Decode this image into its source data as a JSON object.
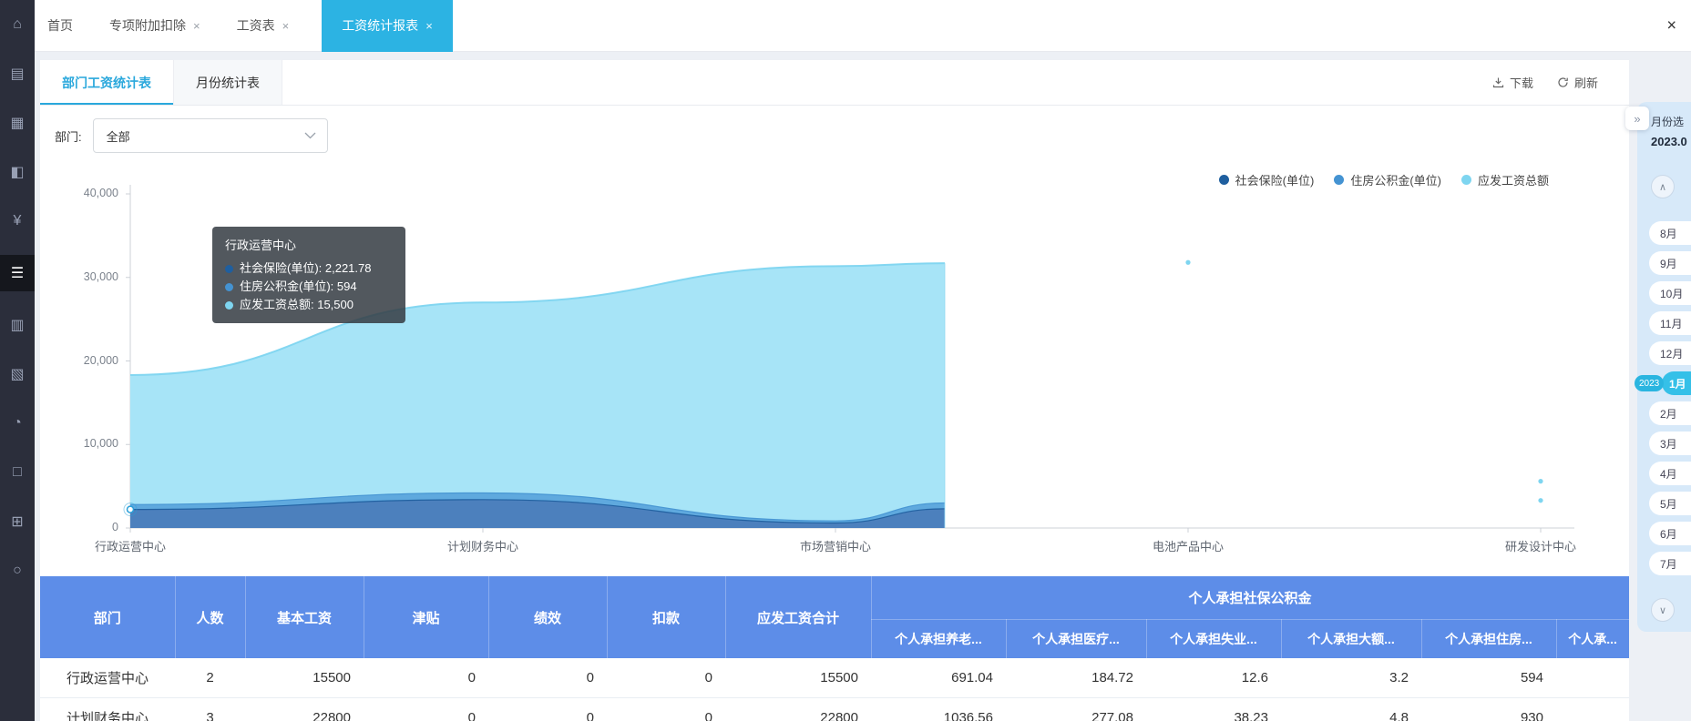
{
  "sidebar": {
    "items": [
      {
        "name": "home",
        "glyph": "⌂"
      },
      {
        "name": "vouchers",
        "glyph": "▤"
      },
      {
        "name": "ledger",
        "glyph": "▦"
      },
      {
        "name": "reports",
        "glyph": "◧"
      },
      {
        "name": "cashier",
        "glyph": "¥"
      },
      {
        "name": "salary",
        "glyph": "☰",
        "active": true
      },
      {
        "name": "assets",
        "glyph": "▥"
      },
      {
        "name": "inventory",
        "glyph": "▧"
      },
      {
        "name": "tax",
        "glyph": "◔"
      },
      {
        "name": "checkout",
        "glyph": "□"
      },
      {
        "name": "settings",
        "glyph": "⊞"
      },
      {
        "name": "user",
        "glyph": "○"
      }
    ]
  },
  "tabbar": {
    "close_icon": "×",
    "close_all_icon": "×",
    "tabs": [
      {
        "label": "首页",
        "closable": false,
        "active": false
      },
      {
        "label": "专项附加扣除",
        "closable": true,
        "active": false
      },
      {
        "label": "工资表",
        "closable": true,
        "active": false
      },
      {
        "label": "工资统计报表",
        "closable": true,
        "active": true
      }
    ]
  },
  "subtabs": {
    "tabs": [
      {
        "label": "部门工资统计表",
        "active": true
      },
      {
        "label": "月份统计表",
        "active": false
      }
    ]
  },
  "toolbar": {
    "download": "下载",
    "refresh": "刷新"
  },
  "filter": {
    "label": "部门:",
    "value": "全部"
  },
  "chart_data": {
    "type": "area",
    "stacked": true,
    "smooth": true,
    "title": "",
    "categories": [
      "行政运营中心",
      "计划财务中心",
      "市场营销中心",
      "电池产品中心",
      "研发设计中心"
    ],
    "series": [
      {
        "name": "社会保险(单位)",
        "color": "#1f5f9f",
        "fill": "#4c80bd",
        "values": [
          2221.78,
          3400,
          600,
          null,
          null
        ]
      },
      {
        "name": "住房公积金(单位)",
        "color": "#4493d2",
        "fill": "#5fa9de",
        "values": [
          594,
          800,
          250,
          null,
          null
        ]
      },
      {
        "name": "应发工资总额",
        "color": "#7ed5f0",
        "fill": "#a7e4f7",
        "values": [
          15500,
          22800,
          30500,
          null,
          null
        ]
      }
    ],
    "ylim": [
      0,
      40000
    ],
    "yticks": [
      "0",
      "10,000",
      "20,000",
      "30,000",
      "40,000"
    ],
    "legend_position": "top-right",
    "fill_cutoff_after_category": 2,
    "fill_cutoff_fraction": 0.31,
    "cutoff_values": [
      2300,
      700,
      28700
    ],
    "scatter_points": [
      {
        "category_index": 3,
        "value": 31800
      },
      {
        "category_index": 4,
        "value": 5600
      },
      {
        "category_index": 4,
        "value": 3300
      }
    ]
  },
  "tooltip": {
    "title": "行政运营中心",
    "items": [
      {
        "name": "社会保险(单位)",
        "value": "2,221.78",
        "color": "#1f5f9f"
      },
      {
        "name": "住房公积金(单位)",
        "value": "594",
        "color": "#4493d2"
      },
      {
        "name": "应发工资总额",
        "value": "15,500",
        "color": "#7ed5f0"
      }
    ]
  },
  "month_panel": {
    "collapse_icon": "»",
    "scroll_up_icon": "∧",
    "scroll_down_icon": "∨",
    "title": "月份选",
    "year": "2023.0",
    "months": [
      "8月",
      "9月",
      "10月",
      "11月",
      "12月",
      "1月",
      "2月",
      "3月",
      "4月",
      "5月",
      "6月",
      "7月"
    ],
    "active_month": "1月",
    "active_badge": "2023"
  },
  "table": {
    "main_headers": [
      "部门",
      "人数",
      "基本工资",
      "津贴",
      "绩效",
      "扣款",
      "应发工资合计"
    ],
    "group_header": "个人承担社保公积金",
    "sub_headers": [
      "个人承担养老...",
      "个人承担医疗...",
      "个人承担失业...",
      "个人承担大额...",
      "个人承担住房...",
      "个人承..."
    ],
    "rows": [
      [
        "行政运营中心",
        "2",
        "15500",
        "0",
        "0",
        "0",
        "15500",
        "691.04",
        "184.72",
        "12.6",
        "3.2",
        "594",
        ""
      ],
      [
        "计划财务中心",
        "3",
        "22800",
        "0",
        "0",
        "0",
        "22800",
        "1036.56",
        "277.08",
        "38.23",
        "4.8",
        "930",
        ""
      ]
    ]
  }
}
